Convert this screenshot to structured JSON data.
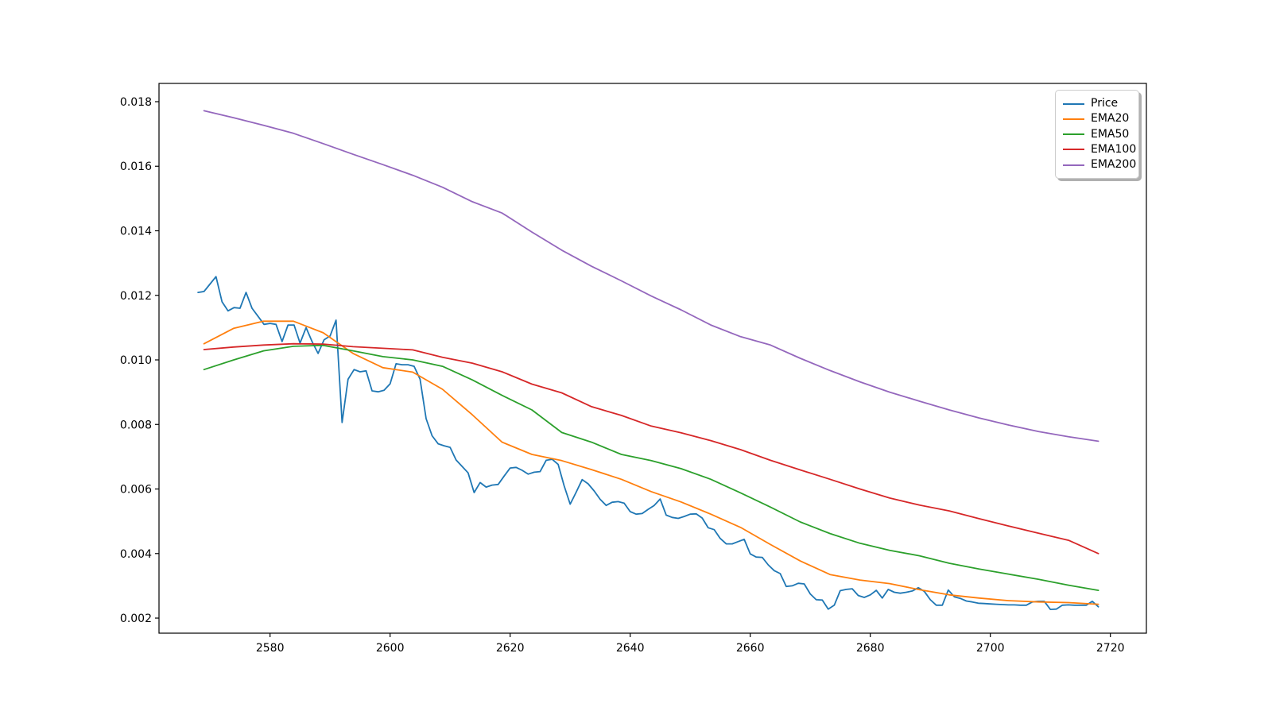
{
  "chart_data": {
    "type": "line",
    "title": "",
    "xlabel": "",
    "ylabel": "",
    "grid": false,
    "background": "#ffffff",
    "xlim": [
      2561.5,
      2726
    ],
    "ylim": [
      0.001533,
      0.018566
    ],
    "x_ticks": [
      2580,
      2600,
      2620,
      2640,
      2660,
      2680,
      2700,
      2720
    ],
    "x_tick_labels": [
      "2580",
      "2600",
      "2620",
      "2640",
      "2660",
      "2680",
      "2700",
      "2720"
    ],
    "y_ticks": [
      0.002,
      0.004,
      0.006,
      0.008,
      0.01,
      0.012,
      0.014,
      0.016,
      0.018
    ],
    "y_tick_labels": [
      "0.002",
      "0.004",
      "0.006",
      "0.008",
      "0.010",
      "0.012",
      "0.014",
      "0.016",
      "0.018"
    ],
    "legend": {
      "position": "upper right",
      "labels": [
        "Price",
        "EMA20",
        "EMA50",
        "EMA100",
        "EMA200"
      ]
    },
    "series": [
      {
        "name": "Price",
        "color": "#1f77b4",
        "x_start": 2568,
        "x_end": 2718,
        "values": [
          0.01209,
          0.01212,
          0.01235,
          0.01258,
          0.0118,
          0.01152,
          0.01162,
          0.0116,
          0.01209,
          0.0116,
          0.01135,
          0.0111,
          0.01113,
          0.0111,
          0.01057,
          0.01108,
          0.01108,
          0.01052,
          0.011,
          0.01057,
          0.0102,
          0.01062,
          0.01074,
          0.01123,
          0.00806,
          0.0094,
          0.0097,
          0.00963,
          0.00966,
          0.00904,
          0.00901,
          0.00906,
          0.00926,
          0.00988,
          0.00985,
          0.00985,
          0.0098,
          0.0094,
          0.00818,
          0.00765,
          0.0074,
          0.00734,
          0.00729,
          0.0069,
          0.0067,
          0.0065,
          0.00589,
          0.0062,
          0.00606,
          0.00612,
          0.00614,
          0.0064,
          0.00665,
          0.00667,
          0.00658,
          0.00646,
          0.00652,
          0.00654,
          0.00689,
          0.00692,
          0.00676,
          0.0061,
          0.00553,
          0.0059,
          0.00629,
          0.00616,
          0.00594,
          0.00568,
          0.00549,
          0.00559,
          0.00561,
          0.00556,
          0.0053,
          0.00522,
          0.00524,
          0.00537,
          0.00549,
          0.00569,
          0.00519,
          0.00512,
          0.00509,
          0.00515,
          0.00522,
          0.00523,
          0.0051,
          0.0048,
          0.00474,
          0.00447,
          0.0043,
          0.0043,
          0.00437,
          0.00444,
          0.00399,
          0.00389,
          0.00388,
          0.00365,
          0.00347,
          0.00338,
          0.00298,
          0.003,
          0.00308,
          0.00306,
          0.00275,
          0.00257,
          0.00256,
          0.00228,
          0.0024,
          0.00285,
          0.00289,
          0.00291,
          0.0027,
          0.00264,
          0.00272,
          0.00286,
          0.00262,
          0.00289,
          0.0028,
          0.00277,
          0.0028,
          0.00284,
          0.00294,
          0.00283,
          0.00257,
          0.0024,
          0.0024,
          0.00287,
          0.00266,
          0.00261,
          0.00253,
          0.0025,
          0.00246,
          0.00245,
          0.00244,
          0.00243,
          0.00242,
          0.00241,
          0.00241,
          0.0024,
          0.0024,
          0.0025,
          0.00252,
          0.00252,
          0.00227,
          0.00228,
          0.0024,
          0.00241,
          0.0024,
          0.0024,
          0.0024,
          0.00252,
          0.00235
        ]
      },
      {
        "name": "EMA20",
        "color": "#ff7f0e",
        "x_start": 2569,
        "x_end": 2718,
        "values": [
          0.0105,
          0.01098,
          0.0112,
          0.0112,
          0.01084,
          0.0102,
          0.00976,
          0.00962,
          0.00909,
          0.0083,
          0.00745,
          0.00707,
          0.00688,
          0.0066,
          0.0063,
          0.00592,
          0.0056,
          0.00522,
          0.00481,
          0.00428,
          0.00377,
          0.00335,
          0.00318,
          0.00307,
          0.00288,
          0.00272,
          0.00262,
          0.00254,
          0.0025,
          0.00248,
          0.00243
        ]
      },
      {
        "name": "EMA50",
        "color": "#2ca02c",
        "x_start": 2569,
        "x_end": 2718,
        "values": [
          0.0097,
          0.01,
          0.01028,
          0.01042,
          0.01045,
          0.01028,
          0.0101,
          0.01,
          0.0098,
          0.00938,
          0.0089,
          0.00845,
          0.00775,
          0.00745,
          0.00707,
          0.00688,
          0.00663,
          0.0063,
          0.00588,
          0.00544,
          0.00498,
          0.00462,
          0.00432,
          0.0041,
          0.00393,
          0.0037,
          0.00352,
          0.00336,
          0.0032,
          0.00302,
          0.00286
        ]
      },
      {
        "name": "EMA100",
        "color": "#d62728",
        "x_start": 2569,
        "x_end": 2718,
        "values": [
          0.01032,
          0.0104,
          0.01046,
          0.0105,
          0.01049,
          0.01041,
          0.01036,
          0.01031,
          0.01008,
          0.0099,
          0.00963,
          0.00925,
          0.00898,
          0.00855,
          0.00828,
          0.00795,
          0.00774,
          0.0075,
          0.00722,
          0.00689,
          0.00659,
          0.0063,
          0.006,
          0.00572,
          0.0055,
          0.00532,
          0.00508,
          0.00485,
          0.00463,
          0.00441,
          0.004
        ]
      },
      {
        "name": "EMA200",
        "color": "#9467bd",
        "x_start": 2569,
        "x_end": 2718,
        "values": [
          0.01772,
          0.0175,
          0.01727,
          0.01702,
          0.0167,
          0.01637,
          0.01605,
          0.01572,
          0.01535,
          0.0149,
          0.01455,
          0.01396,
          0.0134,
          0.0129,
          0.01245,
          0.01198,
          0.01155,
          0.01108,
          0.01072,
          0.01046,
          0.01005,
          0.00967,
          0.00932,
          0.009,
          0.00872,
          0.00845,
          0.0082,
          0.00798,
          0.00778,
          0.00762,
          0.00748
        ]
      }
    ]
  }
}
